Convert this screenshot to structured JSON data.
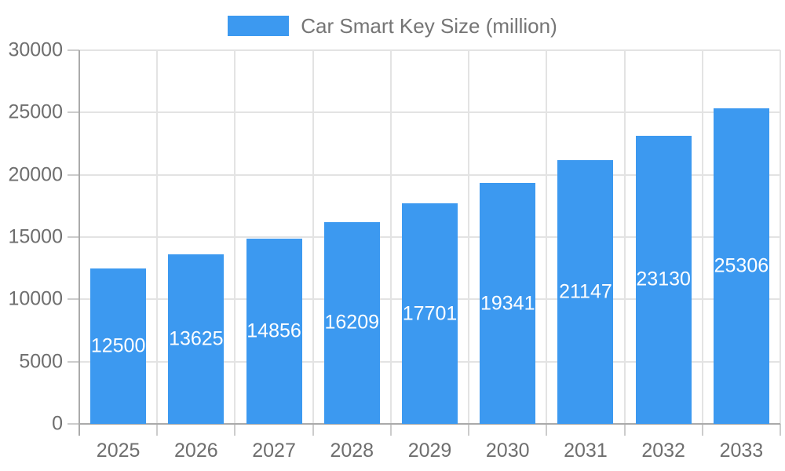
{
  "chart_data": {
    "type": "bar",
    "title": "Car Smart Key Size (million)",
    "categories": [
      "2025",
      "2026",
      "2027",
      "2028",
      "2029",
      "2030",
      "2031",
      "2032",
      "2033"
    ],
    "series": [
      {
        "name": "Car Smart Key Size (million)",
        "values": [
          12500,
          13625,
          14856,
          16209,
          17701,
          19341,
          21147,
          23130,
          25306
        ]
      }
    ],
    "xlabel": "",
    "ylabel": "",
    "ylim": [
      0,
      30000
    ],
    "yticks": [
      0,
      5000,
      10000,
      15000,
      20000,
      25000,
      30000
    ],
    "grid": true,
    "legend_position": "top-center",
    "colors": {
      "bar": "#3C99F0",
      "bar_label_text": "#FFFFFF",
      "axis_text": "#6E6E6E",
      "legend_text": "#757575",
      "gridline": "#E3E3E3",
      "tick": "#CCCCCC",
      "axis_line": "#AAAAAA",
      "background": "#FFFFFF"
    }
  }
}
